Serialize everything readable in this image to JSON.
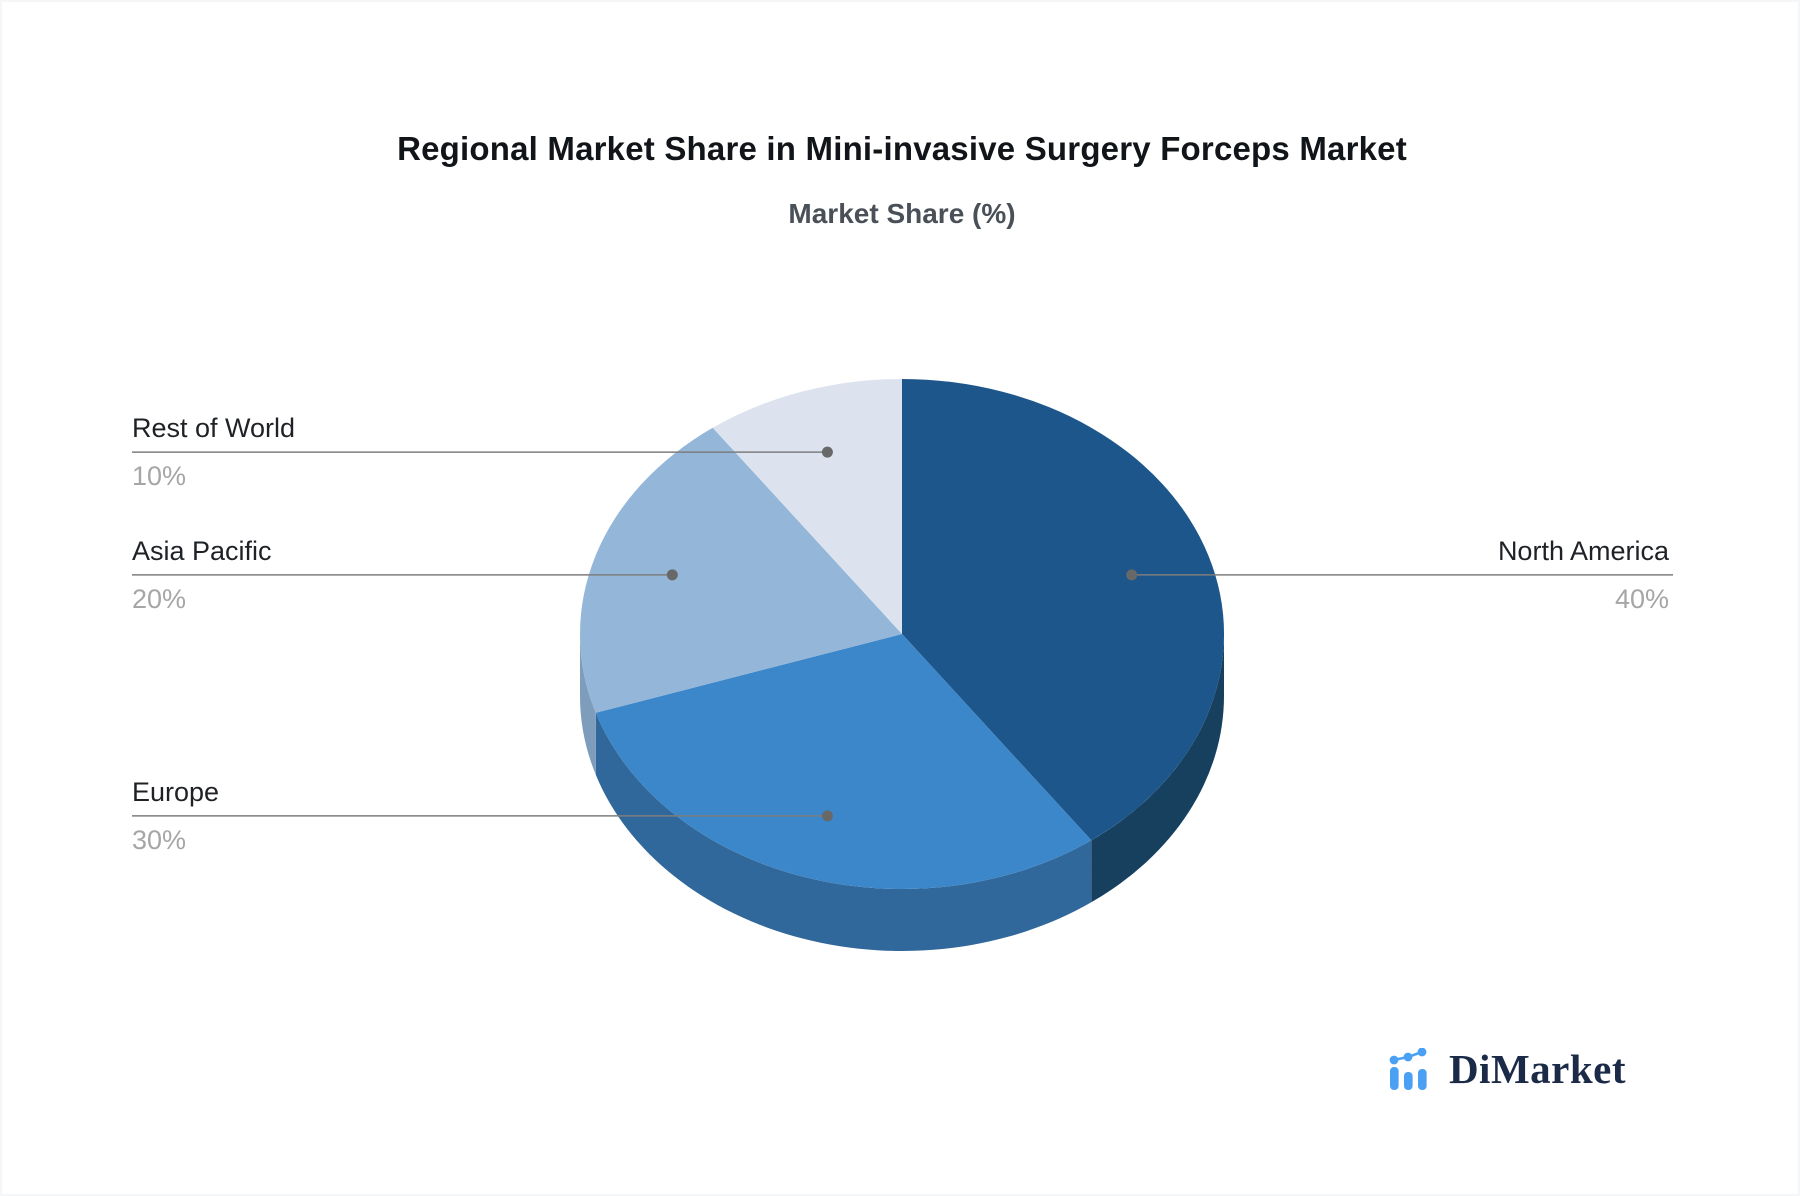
{
  "chart_data": {
    "type": "pie",
    "title": "Regional Market Share in Mini-invasive Surgery Forceps Market",
    "subtitle": "Market Share (%)",
    "unit": "%",
    "effect": "3d",
    "start_angle_deg": 0,
    "direction": "clockwise",
    "legend_position": "callout-labels",
    "slices": [
      {
        "label": "North America",
        "value": 40,
        "pct_label": "40%",
        "color": "#1d568b",
        "side_color": "#17405f",
        "callout_side": "right"
      },
      {
        "label": "Europe",
        "value": 30,
        "pct_label": "30%",
        "color": "#3c87c9",
        "side_color": "#31689b",
        "callout_side": "left"
      },
      {
        "label": "Asia Pacific",
        "value": 20,
        "pct_label": "20%",
        "color": "#93b6d9",
        "side_color": "#7e9cbc",
        "callout_side": "left"
      },
      {
        "label": "Rest of World",
        "value": 10,
        "pct_label": "10%",
        "color": "#dce3ee",
        "side_color": "#c2cddd",
        "callout_side": "left"
      }
    ]
  },
  "callout_style": {
    "line_color": "#7d7d7d",
    "dot_color": "#686868"
  },
  "brand": {
    "name": "DiMarket",
    "logo_blue": "#4aa1f3",
    "logo_navy": "#1b2a47"
  }
}
